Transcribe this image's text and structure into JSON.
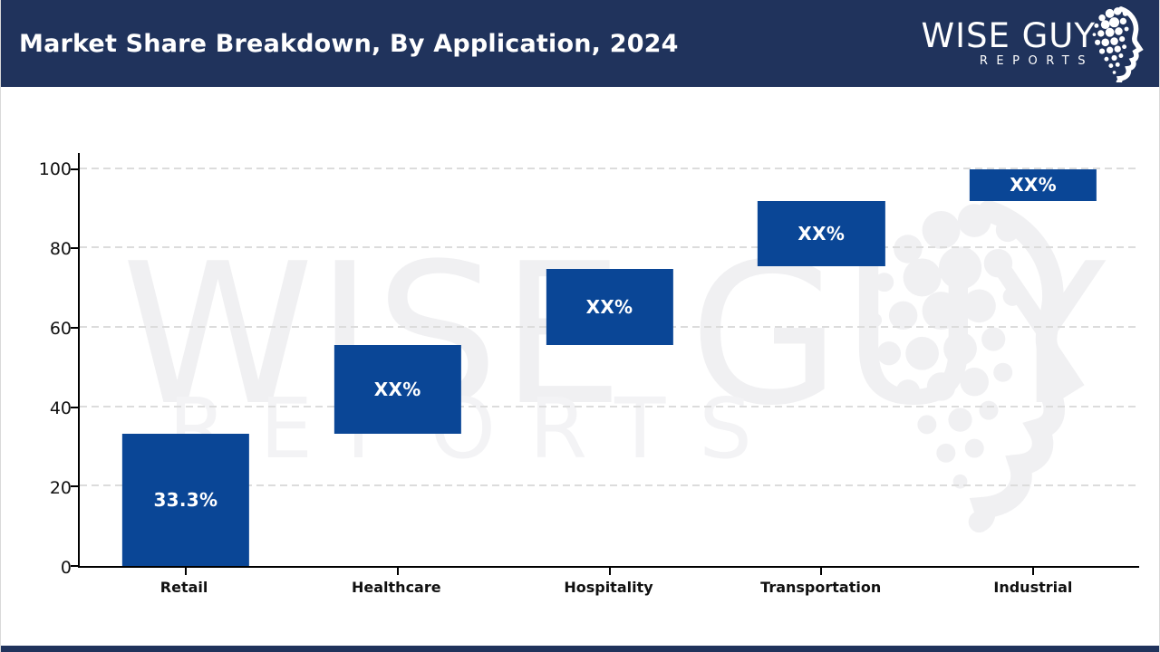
{
  "header": {
    "title": "Market Share Breakdown, By Application, 2024",
    "brand": {
      "line1": "WISE GUY",
      "line2": "REPORTS"
    },
    "bg_color": "#20335c",
    "text_color": "#ffffff"
  },
  "watermark": {
    "line1": "WISE GUY",
    "line2": "REPORTS"
  },
  "chart_data": {
    "type": "bar",
    "subtype": "waterfall",
    "title": "Market Share Breakdown, By Application, 2024",
    "xlabel": "",
    "ylabel": "",
    "categories": [
      "Retail",
      "Healthcare",
      "Hospitality",
      "Transportation",
      "Industrial"
    ],
    "bars": [
      {
        "category": "Retail",
        "start": 0,
        "end": 33.3,
        "label": "33.3%"
      },
      {
        "category": "Healthcare",
        "start": 33.3,
        "end": 55.6,
        "label": "XX%"
      },
      {
        "category": "Hospitality",
        "start": 55.7,
        "end": 74.9,
        "label": "XX%"
      },
      {
        "category": "Transportation",
        "start": 75.4,
        "end": 92.0,
        "label": "XX%"
      },
      {
        "category": "Industrial",
        "start": 91.9,
        "end": 100,
        "label": "XX%"
      }
    ],
    "yticks": [
      0,
      20,
      40,
      60,
      80,
      100
    ],
    "ylim": [
      0,
      104
    ],
    "grid": "dashed horizontal gridlines",
    "legend": "none",
    "bar_color": "#0a4696",
    "bar_label_color": "#ffffff",
    "grid_color": "#dcdcdc",
    "watermark_color": "#f0f0f2"
  }
}
